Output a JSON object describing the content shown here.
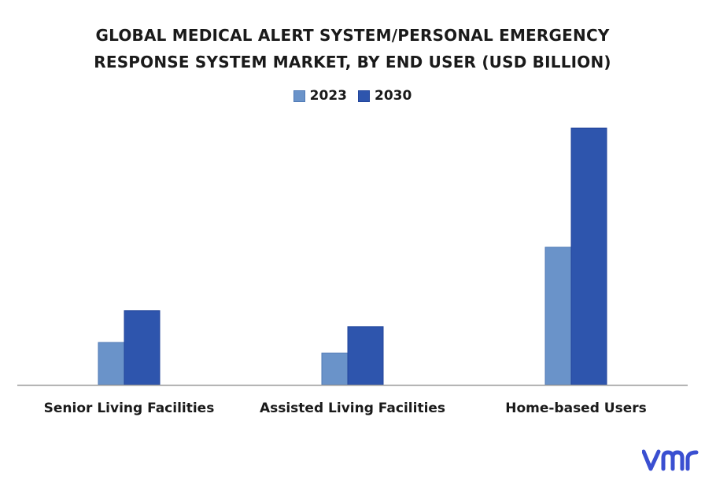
{
  "chart_data": {
    "type": "bar",
    "title_lines": [
      "GLOBAL MEDICAL ALERT SYSTEM/PERSONAL EMERGENCY",
      "RESPONSE SYSTEM MARKET, BY END USER (USD BILLION)"
    ],
    "categories": [
      "Senior Living Facilities",
      "Assisted Living Facilities",
      "Home-based Users"
    ],
    "series": [
      {
        "name": "2023",
        "color": "#6a93c9",
        "values": [
          1.6,
          1.2,
          5.2
        ]
      },
      {
        "name": "2030",
        "color": "#2e55ad",
        "values": [
          2.8,
          2.2,
          9.7
        ]
      }
    ],
    "ylim": [
      0,
      10
    ],
    "grid": false,
    "y_axis_visible": false,
    "legend_position": "top-center"
  },
  "logo": {
    "name": "vmr-logo",
    "text": "vmr",
    "color": "#3a4fd1"
  }
}
